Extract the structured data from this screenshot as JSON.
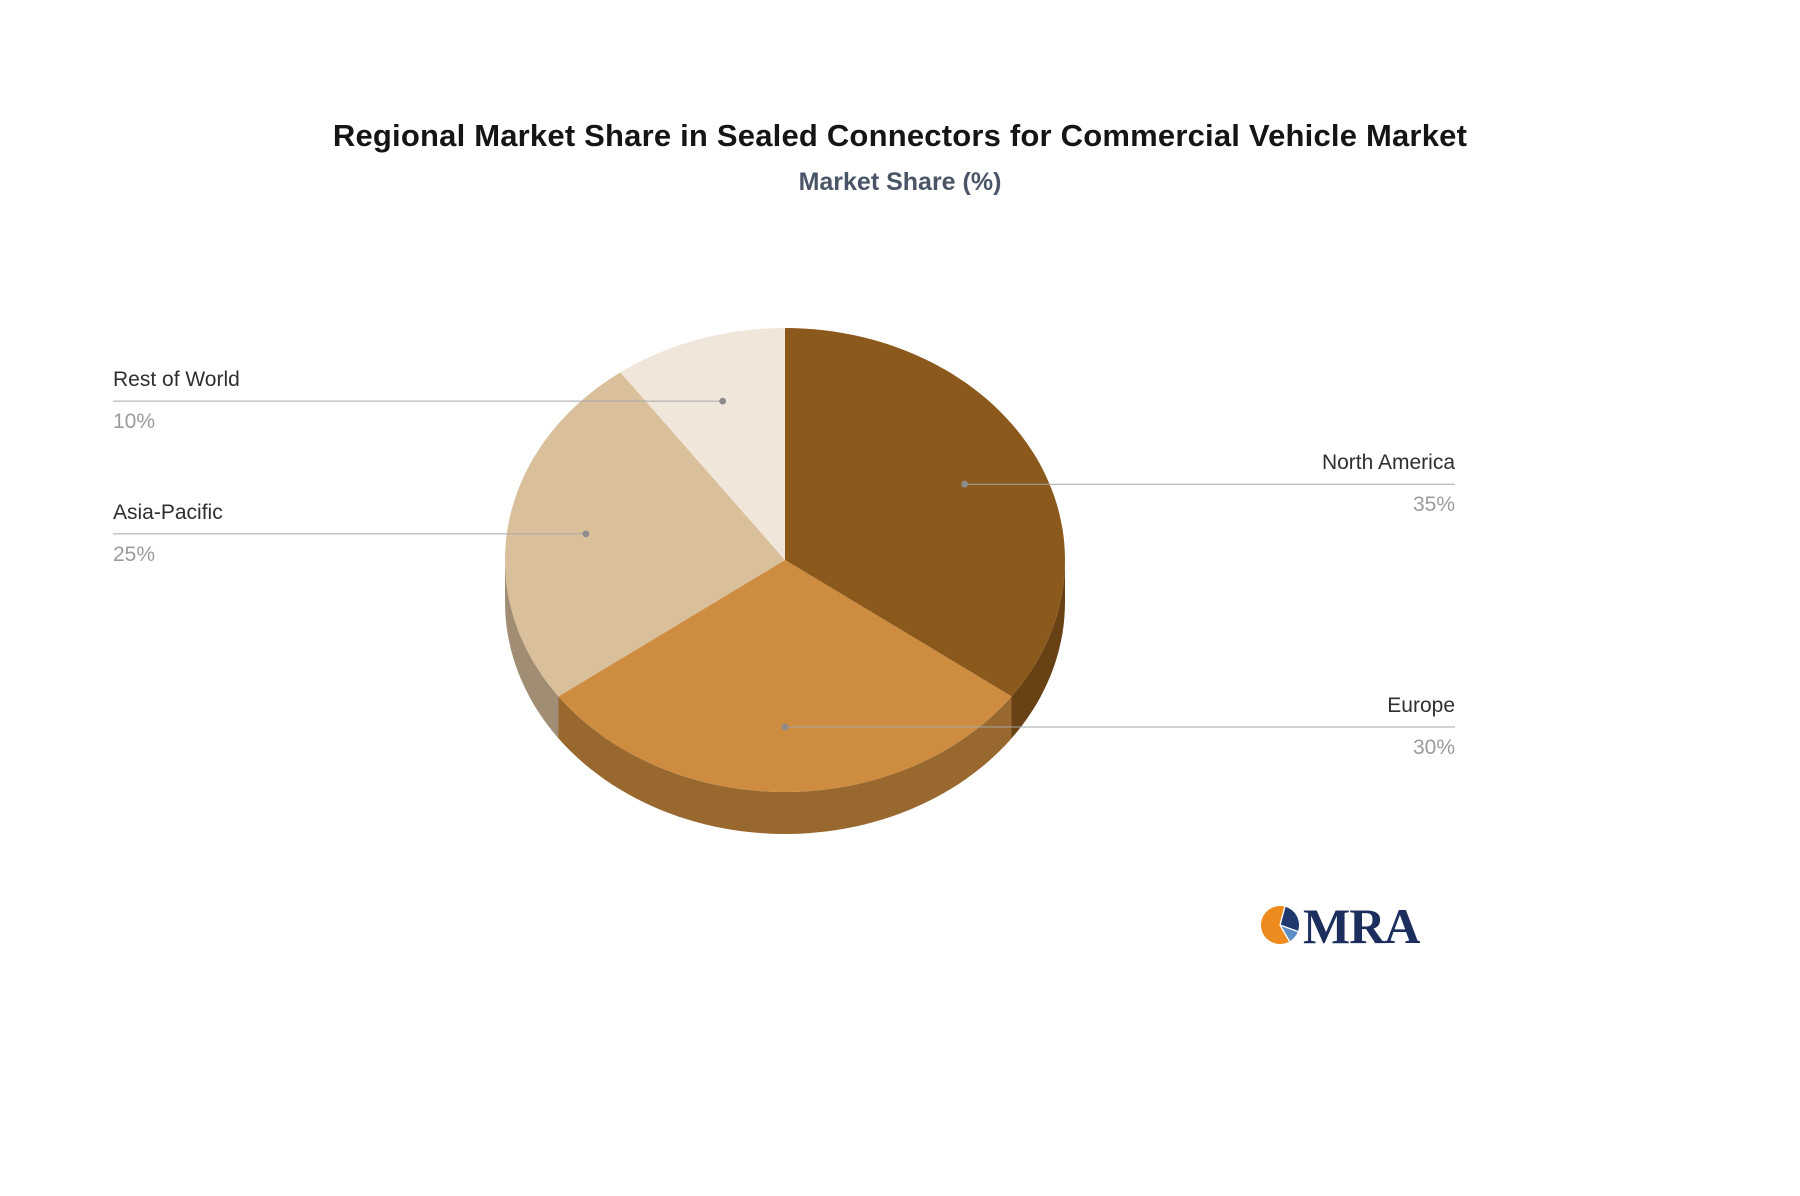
{
  "chart_data": {
    "type": "pie",
    "title": "Regional Market Share in Sealed Connectors for Commercial Vehicle Market",
    "subtitle": "Market Share (%)",
    "labels": [
      "North America",
      "Europe",
      "Asia-Pacific",
      "Rest of World"
    ],
    "values": [
      35,
      30,
      25,
      10
    ],
    "value_labels": [
      "35%",
      "30%",
      "25%",
      "10%"
    ],
    "colors": [
      "#8c591d",
      "#cd8c40",
      "#dabf9b",
      "#f0e6d9"
    ],
    "style": "3d-pie",
    "start_angle_deg": 0,
    "direction": "clockwise",
    "legend_position": "callout-labels",
    "leader_line_color": "#a6a6a6",
    "label_color": "#2f2f2f",
    "percent_color": "#9b9b9b",
    "background": "#ffffff"
  },
  "logo": {
    "text": "MRA",
    "icon_colors": {
      "orange": "#ed8b1e",
      "navy": "#203a70",
      "steel_blue": "#5e8fc4"
    }
  }
}
